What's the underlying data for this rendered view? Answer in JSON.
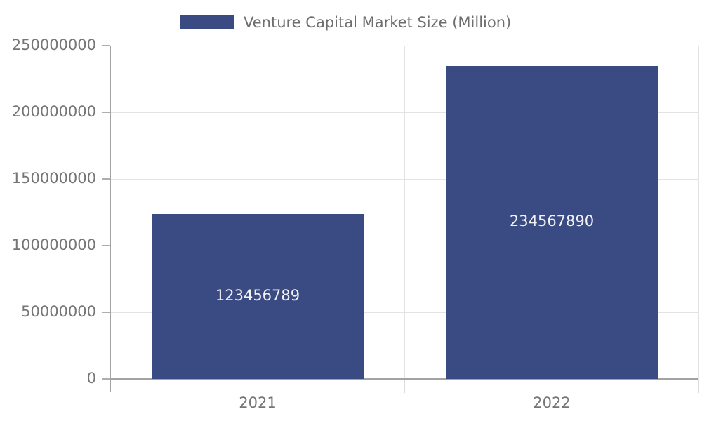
{
  "legend": {
    "label": "Venture Capital Market Size (Million)",
    "swatch_color": "#3a4a82"
  },
  "chart_data": {
    "type": "bar",
    "title": "Venture Capital Market Size (Million)",
    "series_name": "Venture Capital Market Size (Million)",
    "categories": [
      "2021",
      "2022"
    ],
    "values": [
      123456789,
      234567890
    ],
    "bar_labels": [
      "123456789",
      "234567890"
    ],
    "xlabel": "",
    "ylabel": "",
    "ylim": [
      0,
      250000000
    ],
    "yticks": [
      0,
      50000000,
      100000000,
      150000000,
      200000000,
      250000000
    ],
    "ytick_labels": [
      "0",
      "50000000",
      "100000000",
      "150000000",
      "200000000",
      "250000000"
    ],
    "grid": true,
    "legend_position": "top",
    "label_position": "inside",
    "colors": {
      "bar": "#3a4a82",
      "axis": "#a3a3a3",
      "grid": "#e3e3e3",
      "y_tick": "#aeaeae",
      "x_tick": "#dcdcdc",
      "text": "#757575",
      "legend_text": "#6e6e6e",
      "bar_label": "#f2f2f2",
      "background": "#ffffff"
    }
  }
}
